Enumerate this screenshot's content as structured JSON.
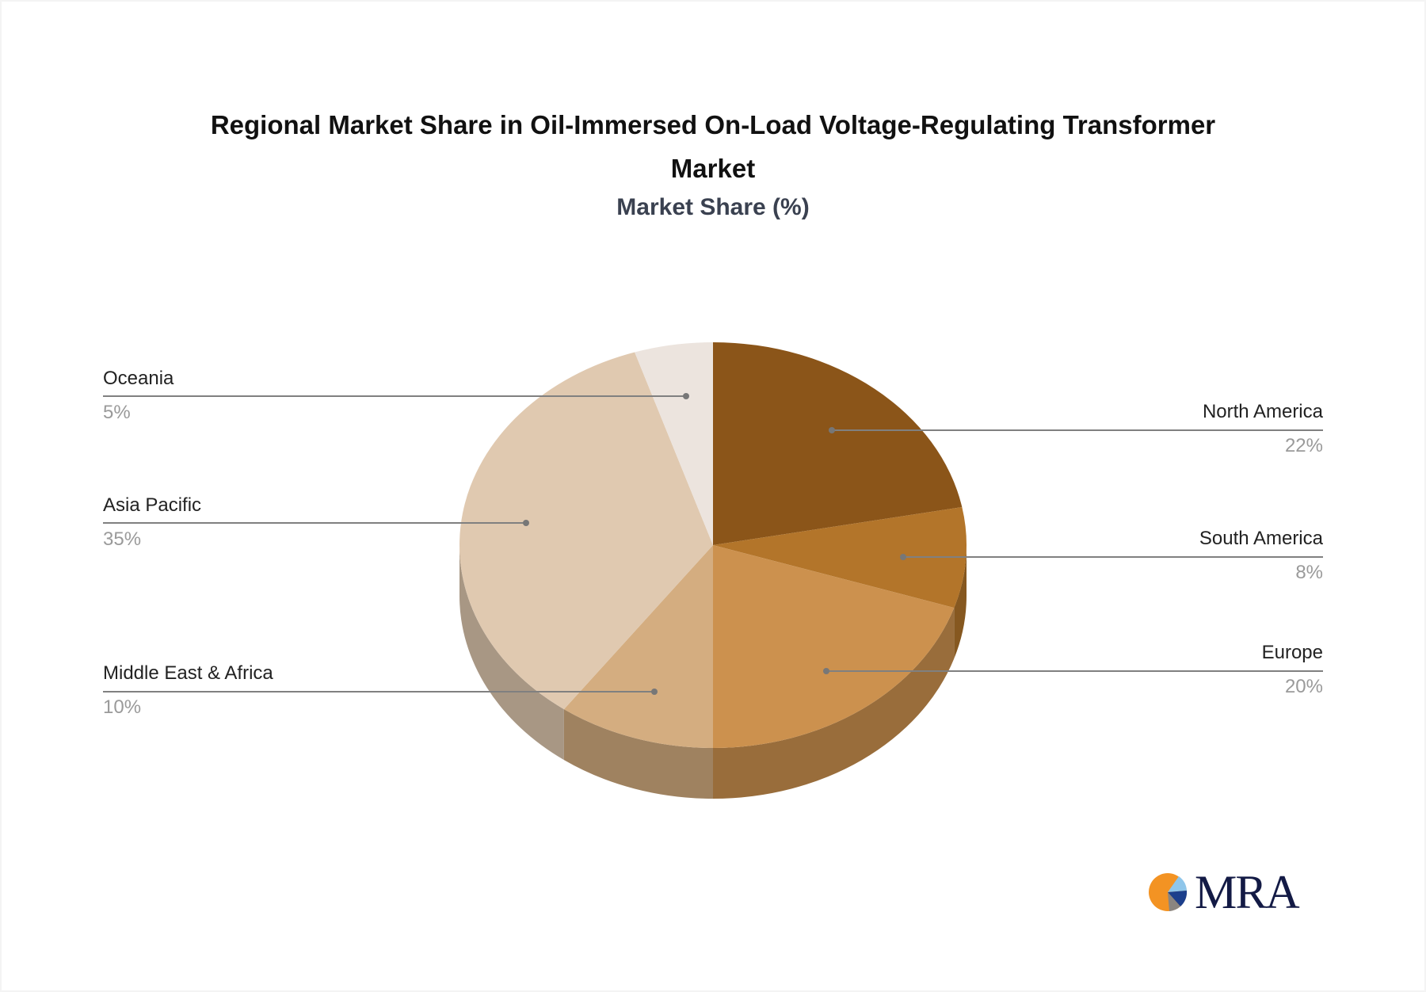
{
  "title_lines": [
    "Regional Market Share in Oil-Immersed On-Load Voltage-Regulating Transformer",
    "Market"
  ],
  "subtitle": "Market Share (%)",
  "logo": {
    "text": "MRA",
    "icon": "pie-logo-icon"
  },
  "colors": {
    "north_america": "#8b5519",
    "south_america": "#b3752a",
    "europe": "#cc914e",
    "middle_east_africa": "#d4ad80",
    "asia_pacific": "#e0c9b0",
    "oceania": "#ece4de",
    "leader_line": "#808080",
    "label_text": "#222222",
    "value_text": "#9a9a9a"
  },
  "labels": {
    "north_america": {
      "name": "North America",
      "value": "22%"
    },
    "south_america": {
      "name": "South America",
      "value": "8%"
    },
    "europe": {
      "name": "Europe",
      "value": "20%"
    },
    "middle_east_africa": {
      "name": "Middle East & Africa",
      "value": "10%"
    },
    "asia_pacific": {
      "name": "Asia Pacific",
      "value": "35%"
    },
    "oceania": {
      "name": "Oceania",
      "value": "5%"
    }
  },
  "chart_data": {
    "type": "pie",
    "style": "3d",
    "title": "Regional Market Share in Oil-Immersed On-Load Voltage-Regulating Transformer Market",
    "subtitle": "Market Share (%)",
    "categories": [
      "North America",
      "South America",
      "Europe",
      "Middle East & Africa",
      "Asia Pacific",
      "Oceania"
    ],
    "values": [
      22,
      8,
      20,
      10,
      35,
      5
    ],
    "unit": "%",
    "colors": [
      "#8b5519",
      "#b3752a",
      "#cc914e",
      "#d4ad80",
      "#e0c9b0",
      "#ece4de"
    ],
    "start_angle_deg": 0,
    "direction": "clockwise",
    "legend": "leader-line labels (left and right)"
  }
}
